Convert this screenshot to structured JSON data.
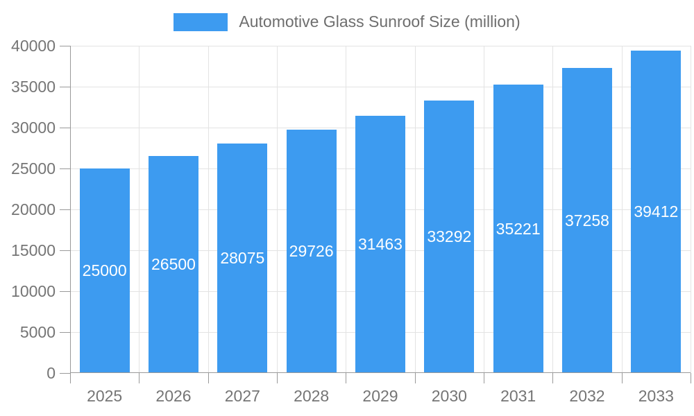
{
  "legend": {
    "label": "Automotive Glass Sunroof Size (million)"
  },
  "colors": {
    "bar": "#3d9bf0",
    "axis_line": "#999999",
    "grid_line": "#e3e3e3",
    "axis_text": "#757575",
    "legend_text": "#6e6e6e",
    "bar_label_text": "#ffffff",
    "background": "#ffffff"
  },
  "chart_data": {
    "type": "bar",
    "title": "Automotive Glass Sunroof Size (million)",
    "series_name": "Automotive Glass Sunroof Size (million)",
    "categories": [
      "2025",
      "2026",
      "2027",
      "2028",
      "2029",
      "2030",
      "2031",
      "2032",
      "2033"
    ],
    "values": [
      25000,
      26500,
      28075,
      29726,
      31463,
      33292,
      35221,
      37258,
      39412
    ],
    "xlabel": "",
    "ylabel": "",
    "ylim": [
      0,
      40000
    ],
    "y_ticks": [
      0,
      5000,
      10000,
      15000,
      20000,
      25000,
      30000,
      35000,
      40000
    ],
    "grid": true,
    "legend_position": "top",
    "value_labels": "inside-center"
  }
}
